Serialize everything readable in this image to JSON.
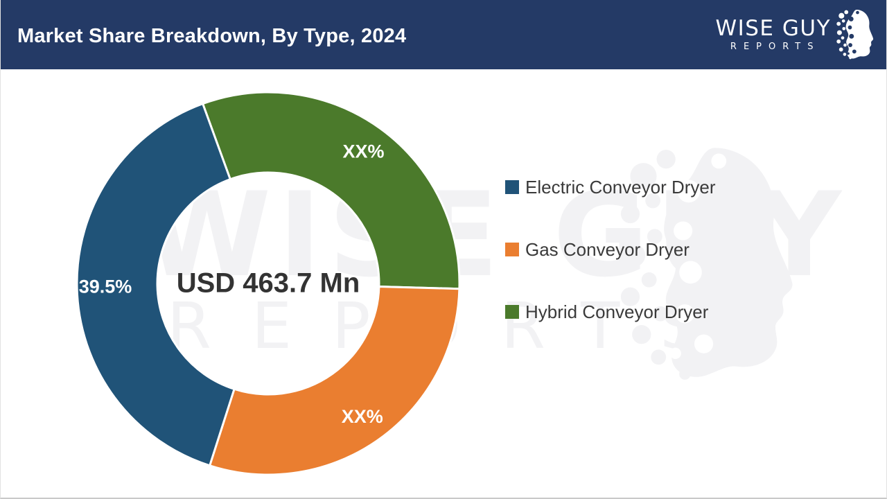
{
  "header": {
    "title": "Market Share Breakdown, By Type, 2024",
    "logo": {
      "line1": "WISE GUY",
      "line2": "REPORTS"
    }
  },
  "watermark": {
    "line1": "WISE GUY",
    "line2": "REPORTS"
  },
  "chart_data": {
    "type": "pie",
    "subtype": "donut",
    "title": "Market Share Breakdown, By Type, 2024",
    "center_label": "USD 463.7 Mn",
    "start_angle_deg": -20,
    "clockwise": true,
    "segments": [
      {
        "name": "Hybrid Conveyor Dryer",
        "value_pct": 31.0,
        "display_label": "XX%",
        "color": "#4B7A2B"
      },
      {
        "name": "Gas Conveyor Dryer",
        "value_pct": 29.5,
        "display_label": "XX%",
        "color": "#EA7E30"
      },
      {
        "name": "Electric Conveyor Dryer",
        "value_pct": 39.5,
        "display_label": "39.5%",
        "color": "#205378"
      }
    ],
    "legend": [
      {
        "label": "Electric Conveyor Dryer",
        "color": "#205378"
      },
      {
        "label": "Gas Conveyor Dryer",
        "color": "#EA7E30"
      },
      {
        "label": "Hybrid Conveyor Dryer",
        "color": "#4B7A2B"
      }
    ],
    "legend_position": "right",
    "geometry": {
      "outer_radius": 276,
      "inner_radius": 160,
      "label_radius": 235
    },
    "label_color": "#FFFFFF",
    "segment_border_color": "#FFFFFF"
  },
  "colors": {
    "header_bg": "#243A66",
    "center_text": "#333333",
    "legend_text": "#3A3A3A",
    "watermark": "#F2F2F4"
  }
}
